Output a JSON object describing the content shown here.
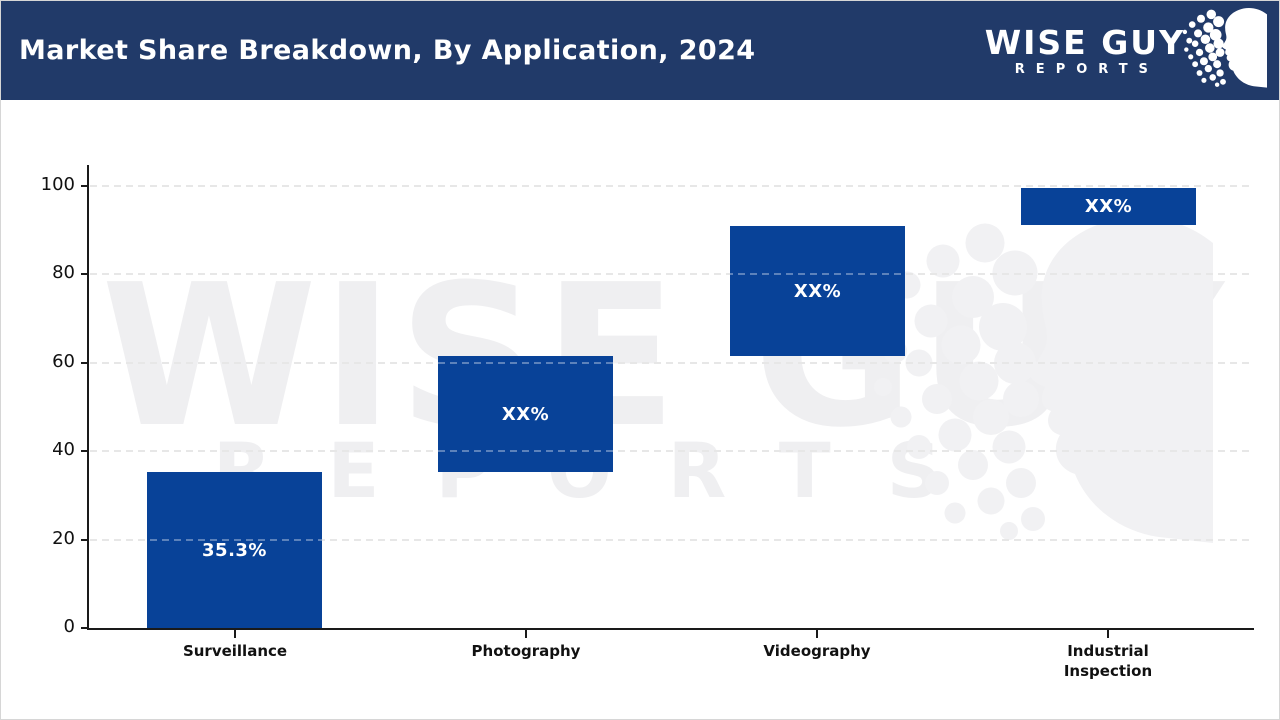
{
  "header": {
    "title": "Market Share Breakdown, By Application, 2024",
    "logo": {
      "line1": "WISE GUY",
      "line2": "REPORTS"
    }
  },
  "watermark": {
    "line1": "WISE GUY",
    "line2": "REPORTS"
  },
  "chart_data": {
    "type": "bar",
    "subtype": "floating-waterfall",
    "title": "Market Share Breakdown, By Application, 2024",
    "xlabel": "",
    "ylabel": "",
    "categories": [
      "Surveillance",
      "Photography",
      "Videography",
      "Industrial Inspection"
    ],
    "segments": [
      {
        "category": "Surveillance",
        "start": 0,
        "end": 35.3,
        "label": "35.3%"
      },
      {
        "category": "Photography",
        "start": 35.3,
        "end": 61.5,
        "label": "XX%"
      },
      {
        "category": "Videography",
        "start": 61.5,
        "end": 91.0,
        "label": "XX%"
      },
      {
        "category": "Industrial Inspection",
        "start": 91.2,
        "end": 99.6,
        "label": "XX%"
      }
    ],
    "yticks": [
      0,
      20,
      40,
      60,
      80,
      100
    ],
    "ylim": [
      0,
      104.7
    ],
    "grid": "horizontal-dashed",
    "legend": "none",
    "bar_color": "#084298",
    "bar_label_color": "#ffffff",
    "gridline_color": "#dbdbdb",
    "axis_color": "#1a1a1a",
    "header_color": "#213a69",
    "watermark_color": "#efeff1"
  }
}
